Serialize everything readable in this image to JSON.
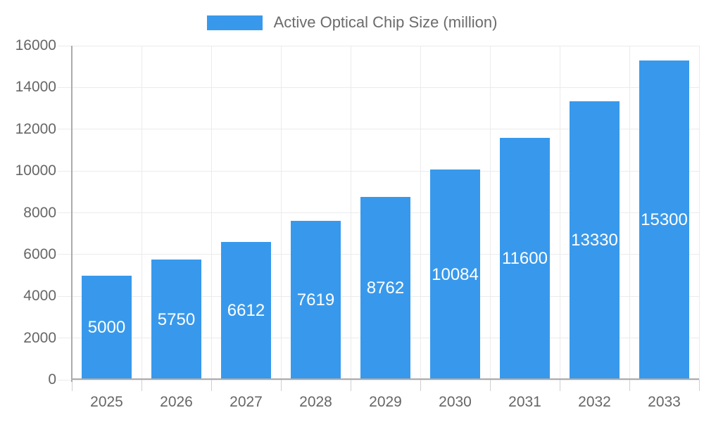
{
  "legend": {
    "label": "Active Optical Chip Size (million)"
  },
  "colors": {
    "bar": "#3899EC",
    "bar_label": "#FFFFFF",
    "axis_text": "#666666",
    "title_text": "#6B6B6B",
    "gridline": "#EBEBEB",
    "tick": "#CFCFCF",
    "axis_line": "#ABABAB",
    "background": "#FFFFFF"
  },
  "chart_data": {
    "type": "bar",
    "title": "Active Optical Chip Size (million)",
    "categories": [
      "2025",
      "2026",
      "2027",
      "2028",
      "2029",
      "2030",
      "2031",
      "2032",
      "2033"
    ],
    "values": [
      5000,
      5750,
      6612,
      7619,
      8762,
      10084,
      11600,
      13330,
      15300
    ],
    "xlabel": "",
    "ylabel": "",
    "ylim": [
      0,
      16000
    ],
    "ytick_step": 2000,
    "yticks": [
      "0",
      "2000",
      "4000",
      "6000",
      "8000",
      "10000",
      "12000",
      "14000",
      "16000"
    ],
    "grid": true,
    "legend_position": "top-center",
    "data_labels": "inside-center",
    "bar_percentage": 0.72
  }
}
